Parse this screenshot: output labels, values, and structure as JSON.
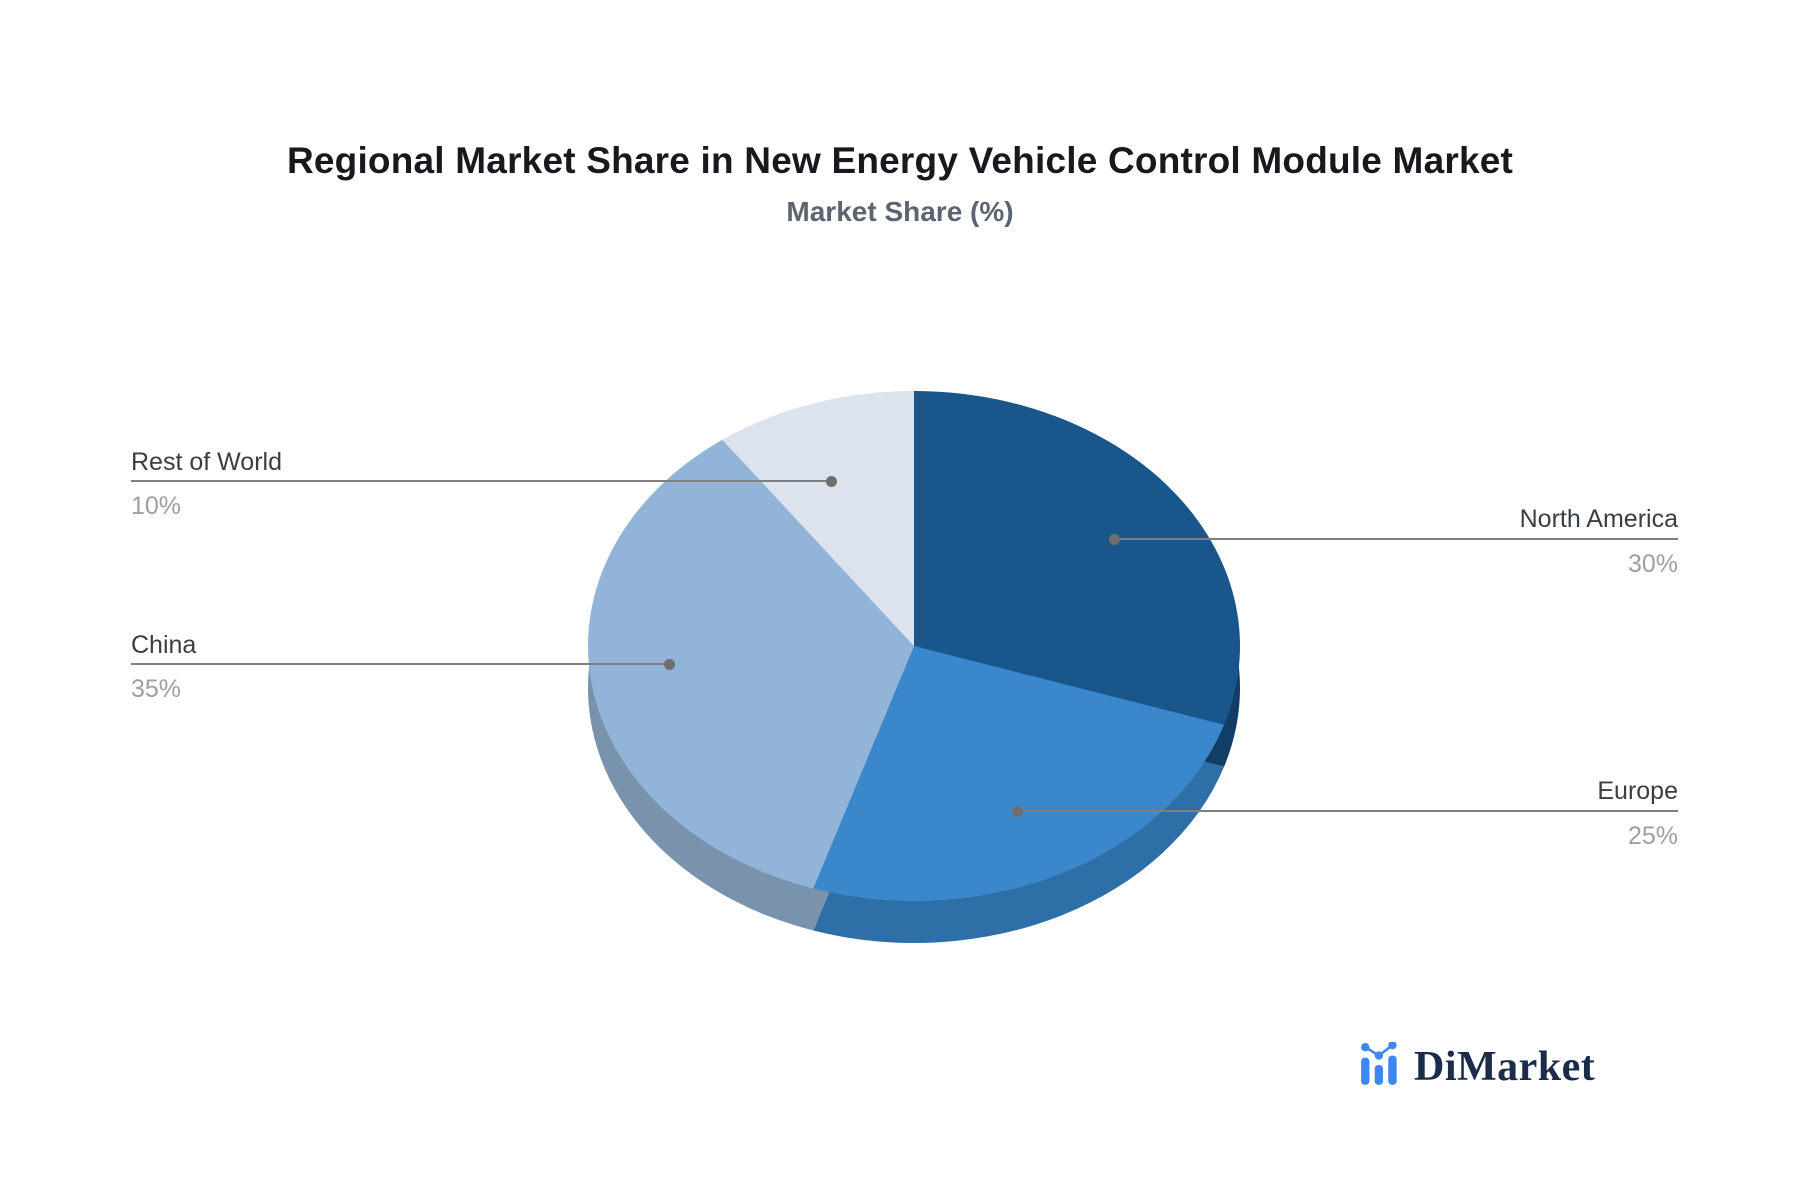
{
  "title": "Regional Market Share in New Energy Vehicle Control Module Market",
  "subtitle": "Market Share (%)",
  "chart_data": {
    "type": "pie",
    "style": "3d-depth",
    "start_angle": "top",
    "direction": "clockwise",
    "legend": "none (leader-line callouts)",
    "segments": [
      {
        "label": "North America",
        "value": 30,
        "display_value": "30%",
        "color": "#19568C",
        "depth_color": "#123E66",
        "callout_side": "right"
      },
      {
        "label": "Europe",
        "value": 25,
        "display_value": "25%",
        "color": "#3A88CB",
        "depth_color": "#2F6FA7",
        "callout_side": "right"
      },
      {
        "label": "China",
        "value": 35,
        "display_value": "35%",
        "color": "#92B4D9",
        "depth_color": "#7A93AD",
        "callout_side": "left"
      },
      {
        "label": "Rest of World",
        "value": 10,
        "display_value": "10%",
        "color": "#DCE3EF",
        "depth_color": "#C2CBDC",
        "callout_side": "left"
      }
    ],
    "leader_line_color": "#7f7f7f",
    "leader_dot_color": "#6e6e6e"
  },
  "branding": {
    "logo_text": "DiMarket",
    "logo_icon": "bar-chart-trend-icon",
    "logo_text_color": "#1b2b4a",
    "logo_icon_color": "#3d87f0"
  }
}
